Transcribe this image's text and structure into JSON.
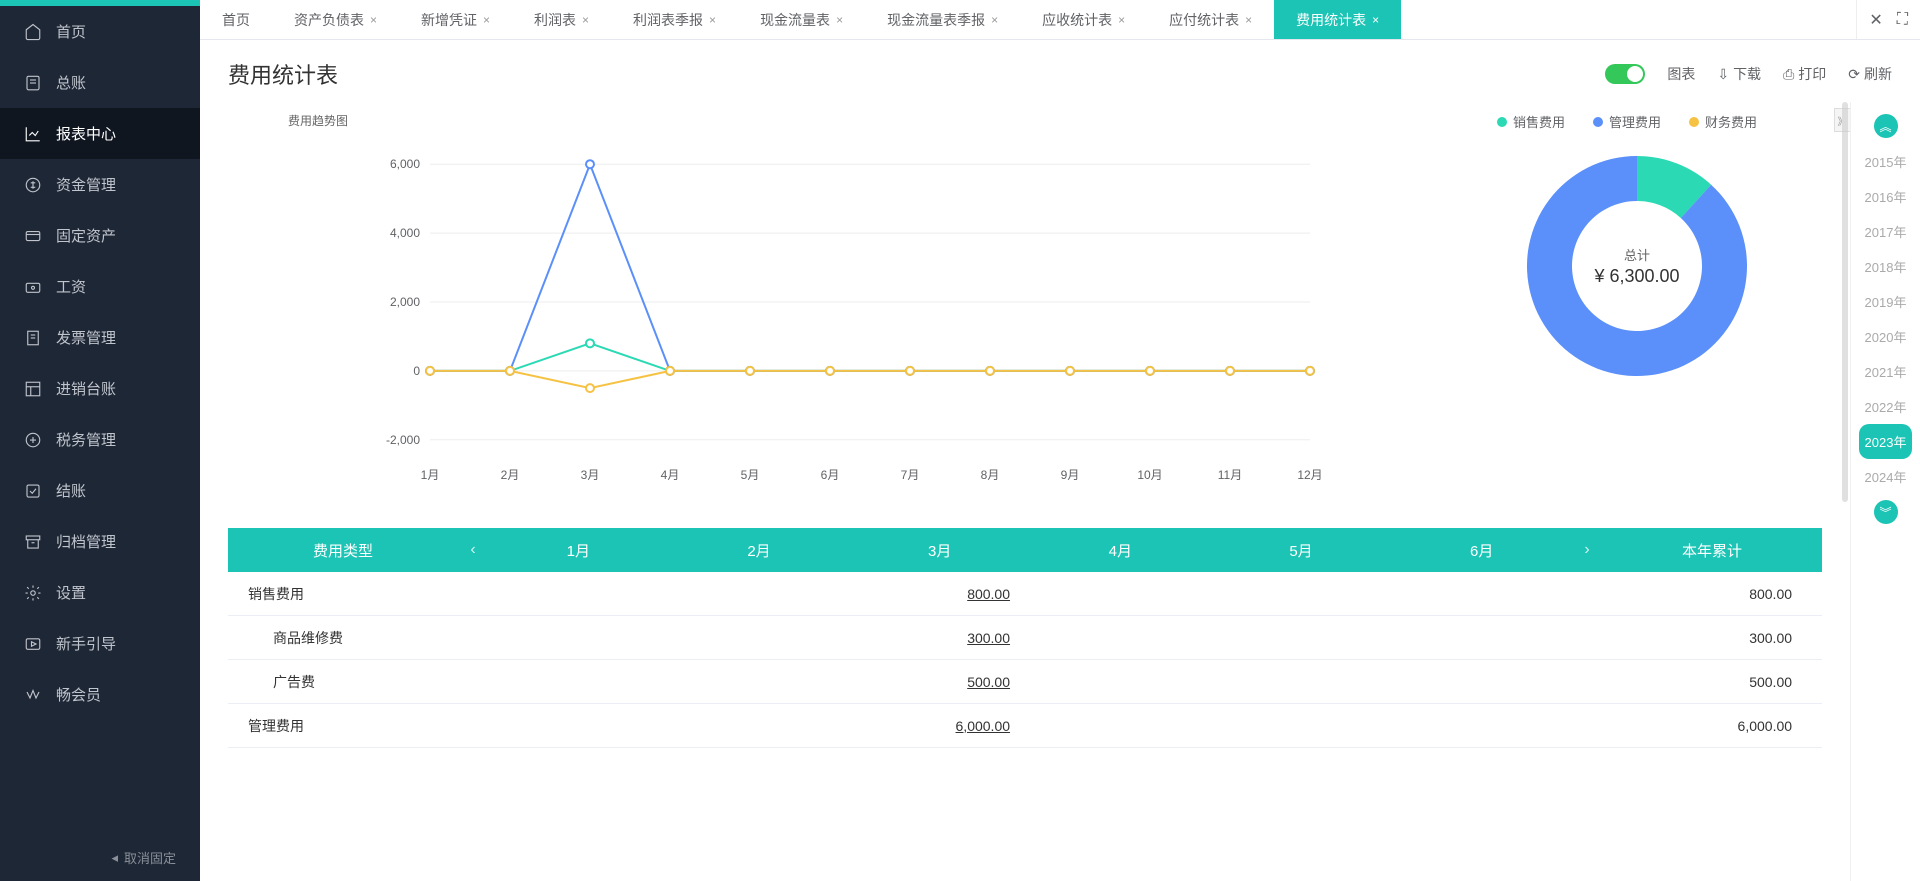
{
  "sidebar": {
    "items": [
      {
        "icon": "home",
        "label": "首页"
      },
      {
        "icon": "ledger",
        "label": "总账"
      },
      {
        "icon": "report",
        "label": "报表中心",
        "active": true
      },
      {
        "icon": "fund",
        "label": "资金管理"
      },
      {
        "icon": "asset",
        "label": "固定资产"
      },
      {
        "icon": "salary",
        "label": "工资"
      },
      {
        "icon": "invoice",
        "label": "发票管理"
      },
      {
        "icon": "inventory",
        "label": "进销台账"
      },
      {
        "icon": "tax",
        "label": "税务管理"
      },
      {
        "icon": "close",
        "label": "结账"
      },
      {
        "icon": "archive",
        "label": "归档管理"
      },
      {
        "icon": "settings",
        "label": "设置"
      },
      {
        "icon": "guide",
        "label": "新手引导"
      },
      {
        "icon": "vip",
        "label": "畅会员"
      }
    ],
    "footer": "取消固定"
  },
  "tabs": [
    {
      "label": "首页",
      "closable": false
    },
    {
      "label": "资产负债表",
      "closable": true
    },
    {
      "label": "新增凭证",
      "closable": true
    },
    {
      "label": "利润表",
      "closable": true
    },
    {
      "label": "利润表季报",
      "closable": true
    },
    {
      "label": "现金流量表",
      "closable": true
    },
    {
      "label": "现金流量表季报",
      "closable": true
    },
    {
      "label": "应收统计表",
      "closable": true
    },
    {
      "label": "应付统计表",
      "closable": true
    },
    {
      "label": "费用统计表",
      "closable": true,
      "active": true
    }
  ],
  "page": {
    "title": "费用统计表",
    "toggle_label": "图表",
    "download": "下载",
    "print": "打印",
    "refresh": "刷新"
  },
  "chart": {
    "title": "费用趋势图",
    "type": "line",
    "x_labels": [
      "1月",
      "2月",
      "3月",
      "4月",
      "5月",
      "6月",
      "7月",
      "8月",
      "9月",
      "10月",
      "11月",
      "12月"
    ],
    "y_ticks": [
      -2000,
      0,
      2000,
      4000,
      6000
    ],
    "y_tick_labels": [
      "-2,000",
      "0",
      "2,000",
      "4,000",
      "6,000"
    ],
    "ylim": [
      -2500,
      6500
    ],
    "grid_color": "#eeeeee",
    "axis_font_size": 12,
    "series": [
      {
        "name": "销售费用",
        "color": "#2bd9b4",
        "values": [
          0,
          0,
          800,
          0,
          0,
          0,
          0,
          0,
          0,
          0,
          0,
          0
        ]
      },
      {
        "name": "管理费用",
        "color": "#5b8ff9",
        "values": [
          0,
          0,
          6000,
          0,
          0,
          0,
          0,
          0,
          0,
          0,
          0,
          0
        ]
      },
      {
        "name": "财务费用",
        "color": "#f6c243",
        "values": [
          0,
          0,
          -500,
          0,
          0,
          0,
          0,
          0,
          0,
          0,
          0,
          0
        ]
      }
    ],
    "marker_radius": 4
  },
  "donut": {
    "type": "donut",
    "center_label": "总计",
    "center_value": "¥ 6,300.00",
    "inner_radius": 65,
    "outer_radius": 110,
    "slices": [
      {
        "name": "销售费用",
        "value": 800,
        "color": "#2bd9b4"
      },
      {
        "name": "管理费用",
        "value": 6000,
        "color": "#5b8ff9"
      },
      {
        "name": "财务费用",
        "value": -500,
        "color": "#f6c243"
      }
    ],
    "background": "#ffffff"
  },
  "legend": [
    {
      "label": "销售费用",
      "color": "#2bd9b4"
    },
    {
      "label": "管理费用",
      "color": "#5b8ff9"
    },
    {
      "label": "财务费用",
      "color": "#f6c243"
    }
  ],
  "table": {
    "header_type": "费用类型",
    "months": [
      "1月",
      "2月",
      "3月",
      "4月",
      "5月",
      "6月"
    ],
    "header_total": "本年累计",
    "rows": [
      {
        "label": "销售费用",
        "indent": false,
        "cells": [
          "",
          "",
          "800.00",
          "",
          "",
          ""
        ],
        "underline_col": 2,
        "total": "800.00"
      },
      {
        "label": "商品维修费",
        "indent": true,
        "cells": [
          "",
          "",
          "300.00",
          "",
          "",
          ""
        ],
        "underline_col": 2,
        "total": "300.00"
      },
      {
        "label": "广告费",
        "indent": true,
        "cells": [
          "",
          "",
          "500.00",
          "",
          "",
          ""
        ],
        "underline_col": 2,
        "total": "500.00"
      },
      {
        "label": "管理费用",
        "indent": false,
        "cells": [
          "",
          "",
          "6,000.00",
          "",
          "",
          ""
        ],
        "underline_col": 2,
        "total": "6,000.00"
      }
    ],
    "header_bg": "#1bc4b4",
    "header_color": "#ffffff",
    "row_border": "#ebeef5"
  },
  "years": {
    "list": [
      "2015年",
      "2016年",
      "2017年",
      "2018年",
      "2019年",
      "2020年",
      "2021年",
      "2022年",
      "2023年",
      "2024年"
    ],
    "active": "2023年"
  },
  "colors": {
    "accent": "#1bc4b4",
    "sidebar_bg": "#1e2736",
    "sidebar_active": "#0f1620"
  }
}
